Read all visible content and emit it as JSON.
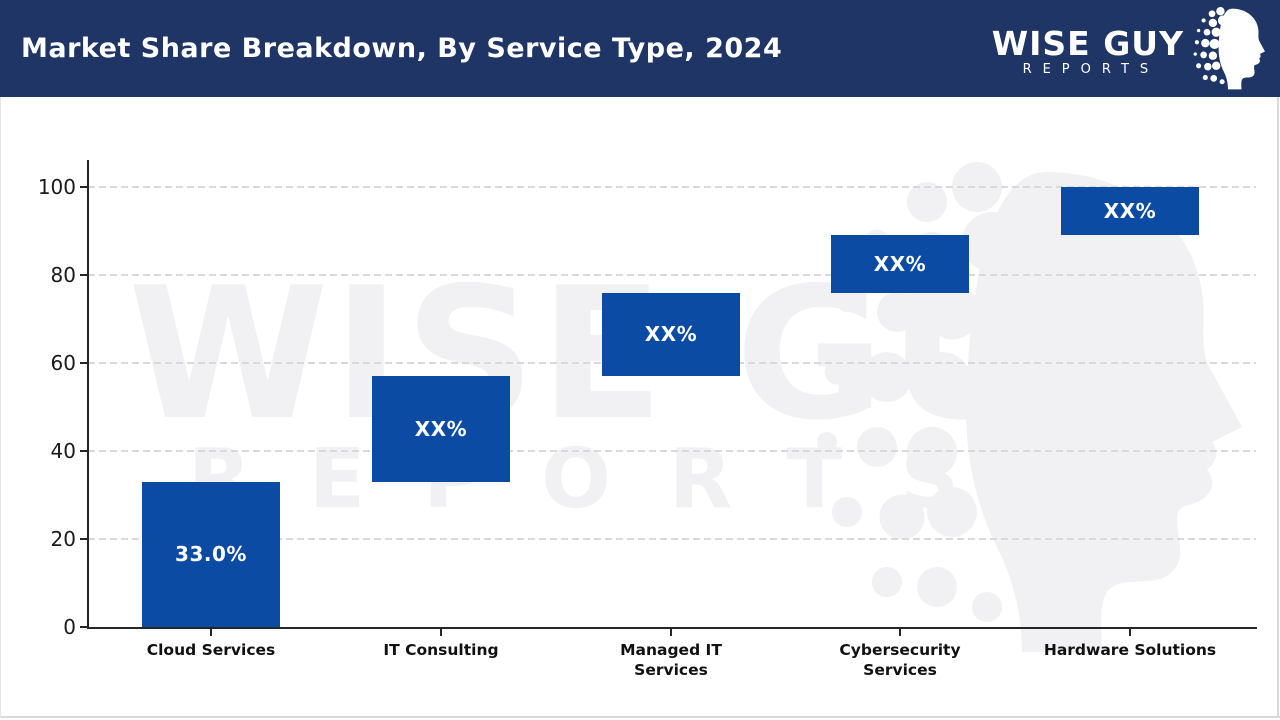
{
  "header": {
    "title": "Market Share Breakdown, By Service Type, 2024",
    "logo": {
      "wordmark": "WISE GUY",
      "subtitle": "REPORTS"
    }
  },
  "watermark": {
    "wordmark": "WISE GUY",
    "subtitle": "REPORTS"
  },
  "colors": {
    "header_bg": "#1f3566",
    "bar": "#0b4ba3",
    "grid": "#d9d9d9",
    "axis": "#262626",
    "wm": "#f1f1f3"
  },
  "chart_data": {
    "type": "bar",
    "subtype": "waterfall",
    "title": "Market Share Breakdown, By Service Type, 2024",
    "xlabel": "",
    "ylabel": "",
    "categories": [
      "Cloud Services",
      "IT Consulting",
      "Managed IT\nServices",
      "Cybersecurity\nServices",
      "Hardware Solutions"
    ],
    "segments": [
      {
        "category": "Cloud Services",
        "start": 0,
        "end": 33,
        "segment_value": 33,
        "value_label": "33.0%"
      },
      {
        "category": "IT Consulting",
        "start": 33,
        "end": 57,
        "segment_value": 24,
        "value_label": "XX%"
      },
      {
        "category": "Managed IT Services",
        "start": 57,
        "end": 76,
        "segment_value": 19,
        "value_label": "XX%"
      },
      {
        "category": "Cybersecurity Services",
        "start": 76,
        "end": 89,
        "segment_value": 13,
        "value_label": "XX%"
      },
      {
        "category": "Hardware Solutions",
        "start": 89,
        "end": 100,
        "segment_value": 11,
        "value_label": "XX%"
      }
    ],
    "yticks": [
      0,
      20,
      40,
      60,
      80,
      100
    ],
    "ylim": [
      0,
      106
    ],
    "grid": "horizontal-dashed",
    "legend": "none",
    "bar_label_style": "white-bold-centered"
  }
}
